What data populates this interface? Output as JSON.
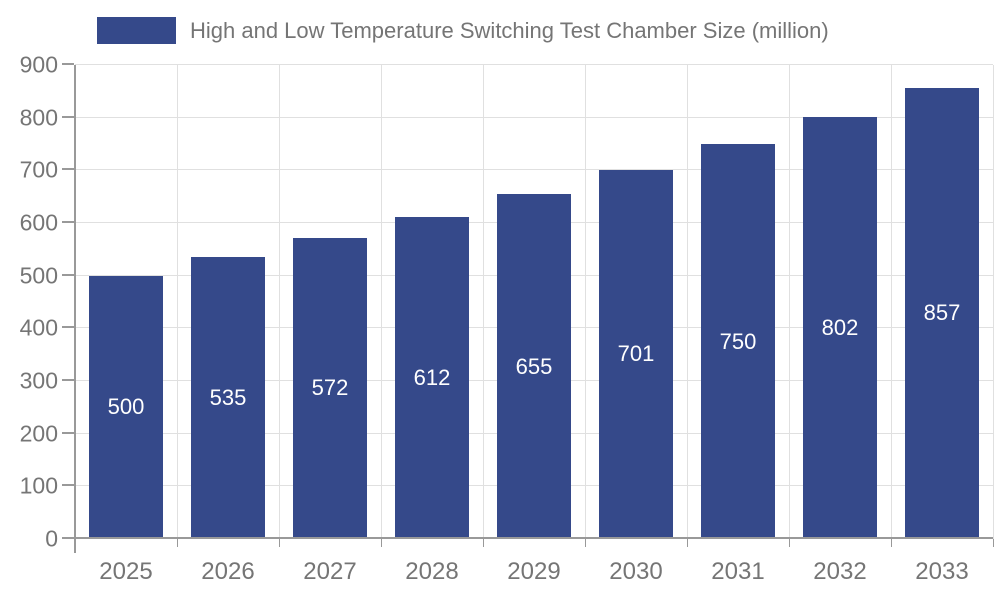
{
  "chart_data": {
    "type": "bar",
    "title": "High and Low Temperature Switching Test Chamber Size (million)",
    "categories": [
      "2025",
      "2026",
      "2027",
      "2028",
      "2029",
      "2030",
      "2031",
      "2032",
      "2033"
    ],
    "values": [
      500,
      535,
      572,
      612,
      655,
      701,
      750,
      802,
      857
    ],
    "xlabel": "",
    "ylabel": "",
    "ylim": [
      0,
      900
    ],
    "ytick_step": 100,
    "grid": true,
    "legend_position": "top-left",
    "colors": {
      "bar": "#35498a",
      "value_label": "#ffffff",
      "axis_text": "#757575",
      "grid_line": "#e0e0e0",
      "axis_line": "#999999",
      "background": "#ffffff"
    }
  }
}
